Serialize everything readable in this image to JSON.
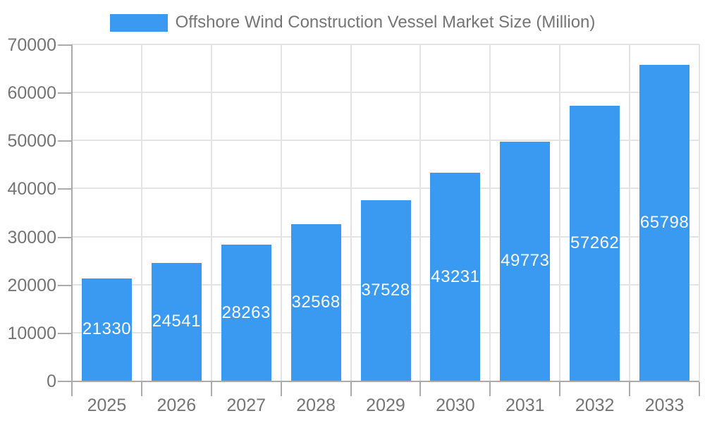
{
  "chart_data": {
    "type": "bar",
    "title": "Offshore Wind Construction Vessel Market Size (Million)",
    "categories": [
      "2025",
      "2026",
      "2027",
      "2028",
      "2029",
      "2030",
      "2031",
      "2032",
      "2033"
    ],
    "values": [
      21330,
      24541,
      28263,
      32568,
      37528,
      43231,
      49773,
      57262,
      65798
    ],
    "xlabel": "",
    "ylabel": "",
    "ylim": [
      0,
      70000
    ],
    "yticks": [
      0,
      10000,
      20000,
      30000,
      40000,
      50000,
      60000,
      70000
    ],
    "grid": true,
    "legend_position": "top-center",
    "data_label_position": "inside-center",
    "colors": {
      "bar": "#3A99F0",
      "bar_label": "#FFFFFF",
      "axis_text": "#757575",
      "grid_line": "#E4E4E4",
      "axis_line": "#ABABAB",
      "tick_line": "#ABABAB",
      "background": "#FFFFFF"
    }
  }
}
